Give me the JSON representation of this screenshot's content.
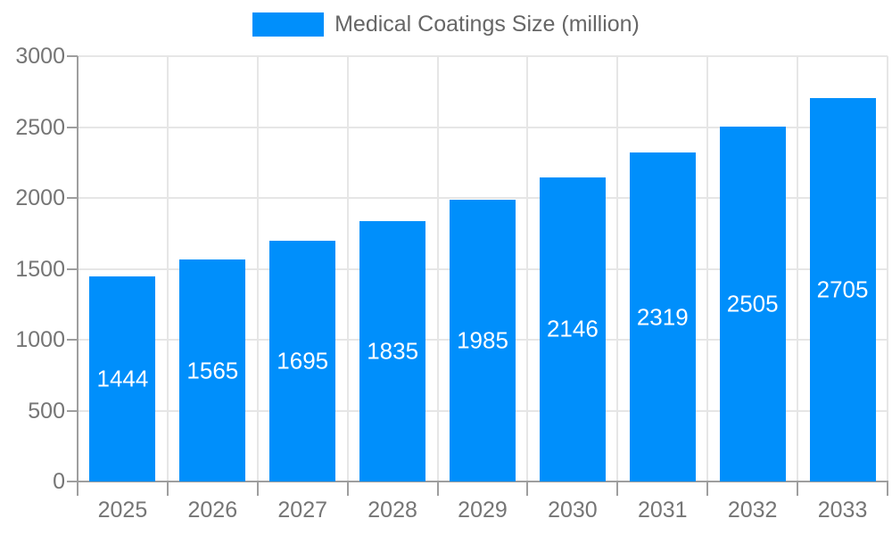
{
  "chart_data": {
    "type": "bar",
    "title": "Medical Coatings Size (million)",
    "categories": [
      "2025",
      "2026",
      "2027",
      "2028",
      "2029",
      "2030",
      "2031",
      "2032",
      "2033"
    ],
    "values": [
      1444,
      1565,
      1695,
      1835,
      1985,
      2146,
      2319,
      2505,
      2705
    ],
    "series": [
      {
        "name": "Medical Coatings Size (million)",
        "values": [
          1444,
          1565,
          1695,
          1835,
          1985,
          2146,
          2319,
          2505,
          2705
        ]
      }
    ],
    "xlabel": "",
    "ylabel": "",
    "ylim": [
      0,
      3000
    ],
    "ytick_step": 500,
    "ytick_labels": [
      "0",
      "500",
      "1000",
      "1500",
      "2000",
      "2500",
      "3000"
    ],
    "grid": true,
    "legend_position": "top",
    "bar_labels_shown": true,
    "colors": {
      "bar": "#008FFB",
      "bar_label_text": "#ffffff",
      "grid": "#e6e6e6",
      "axis": "#9e9e9e",
      "tick_text": "#757575",
      "legend_text": "#666666",
      "background": "#ffffff"
    }
  },
  "legend": {
    "label": "Medical Coatings Size (million)"
  }
}
